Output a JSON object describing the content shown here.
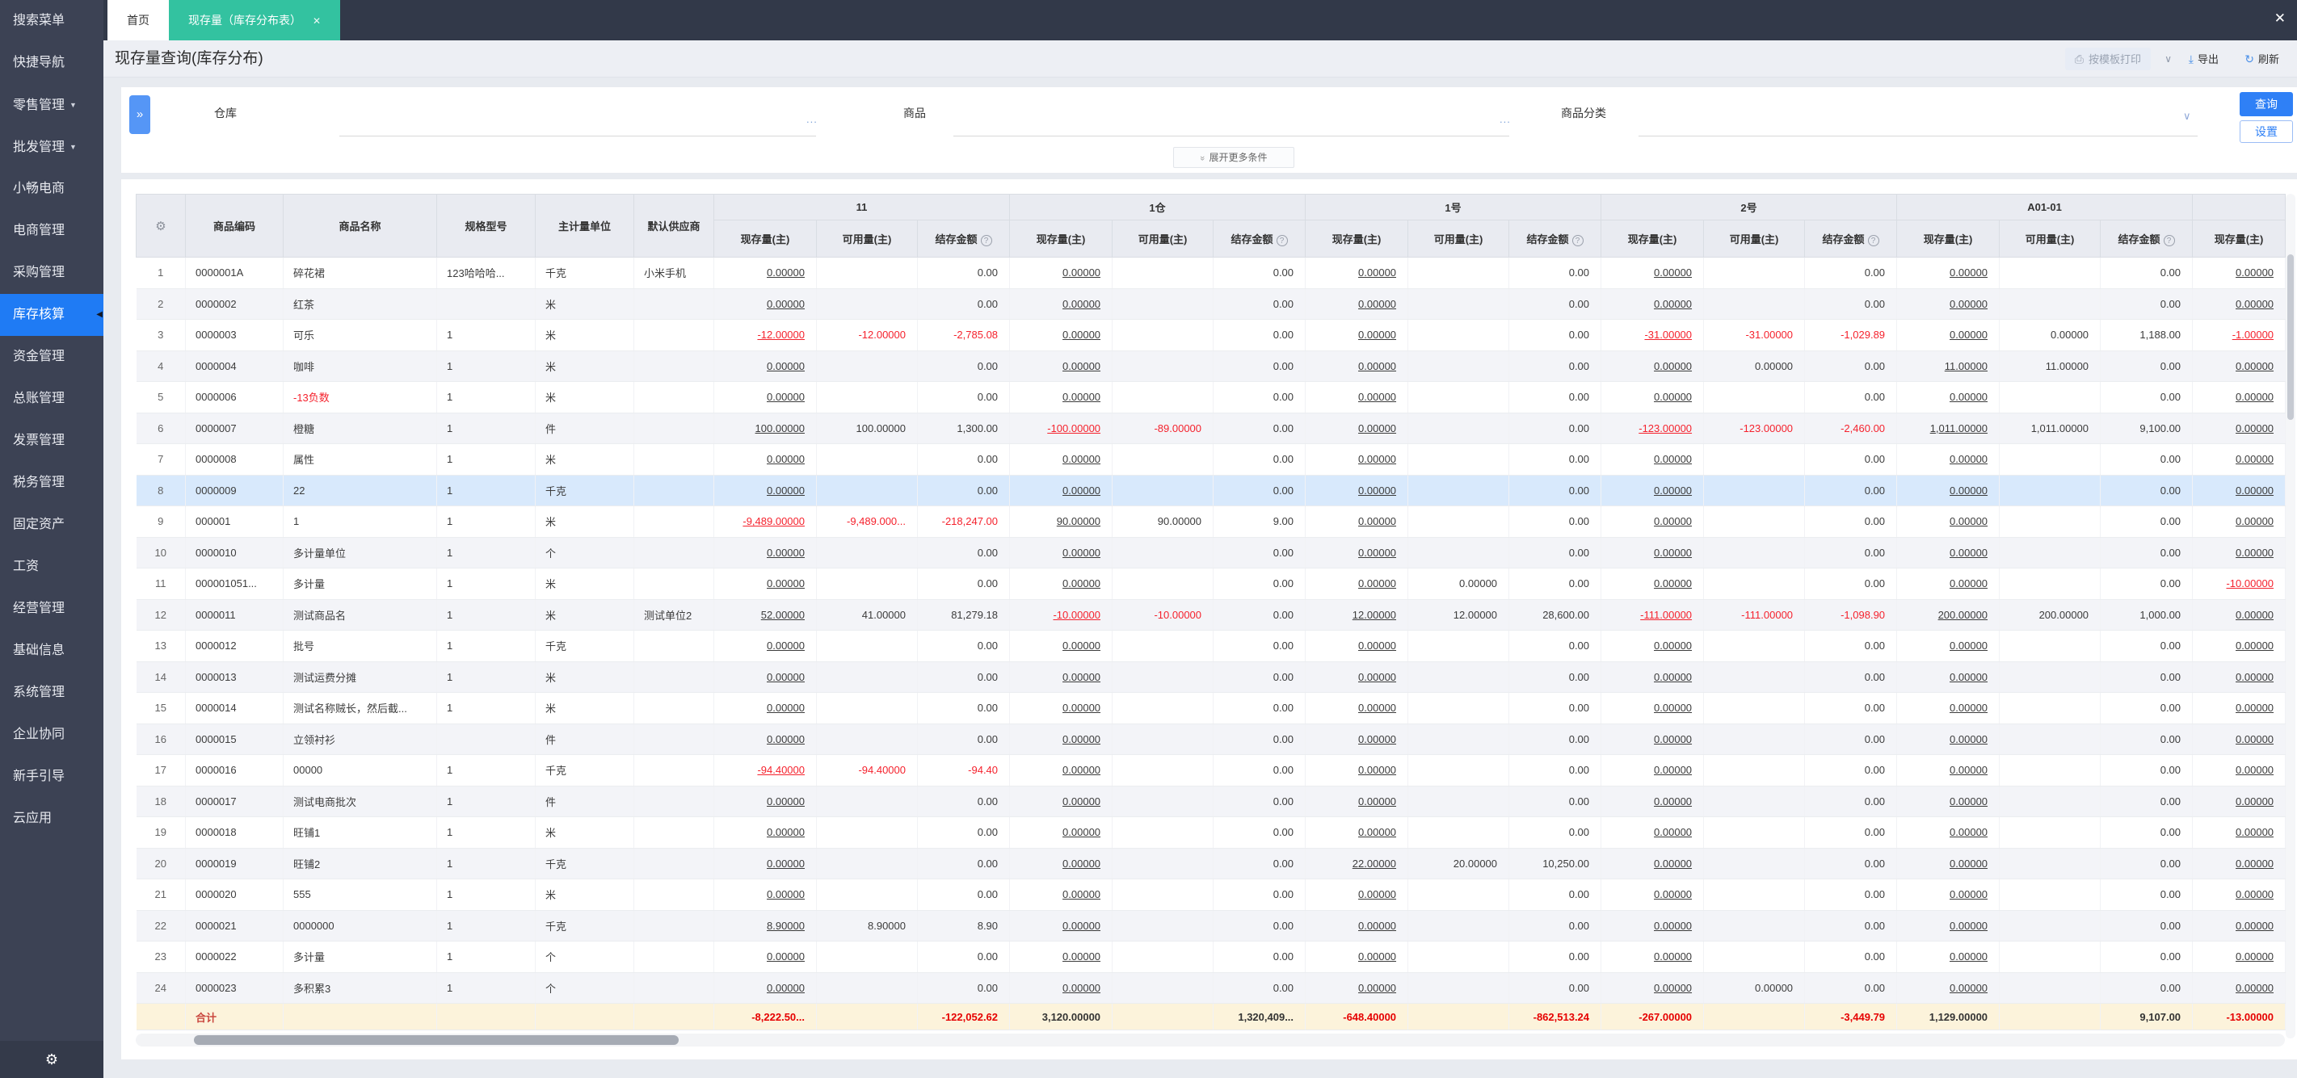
{
  "window": {
    "close": "✕"
  },
  "tabs": [
    {
      "label": "首页",
      "active": false,
      "closable": false
    },
    {
      "label": "现存量（库存分布表）",
      "active": true,
      "closable": true,
      "close_glyph": "✕"
    }
  ],
  "sidebar": {
    "active_index": 7,
    "items": [
      {
        "label": "搜索菜单",
        "arrow": false
      },
      {
        "label": "快捷导航",
        "arrow": false
      },
      {
        "label": "零售管理",
        "arrow": true
      },
      {
        "label": "批发管理",
        "arrow": true
      },
      {
        "label": "小畅电商",
        "arrow": false
      },
      {
        "label": "电商管理",
        "arrow": false
      },
      {
        "label": "采购管理",
        "arrow": false
      },
      {
        "label": "库存核算",
        "arrow": false
      },
      {
        "label": "资金管理",
        "arrow": false
      },
      {
        "label": "总账管理",
        "arrow": false
      },
      {
        "label": "发票管理",
        "arrow": false
      },
      {
        "label": "税务管理",
        "arrow": false
      },
      {
        "label": "固定资产",
        "arrow": false
      },
      {
        "label": "工资",
        "arrow": false
      },
      {
        "label": "经营管理",
        "arrow": false
      },
      {
        "label": "基础信息",
        "arrow": false
      },
      {
        "label": "系统管理",
        "arrow": false
      },
      {
        "label": "企业协同",
        "arrow": false
      },
      {
        "label": "新手引导",
        "arrow": false
      },
      {
        "label": "云应用",
        "arrow": false
      }
    ]
  },
  "page": {
    "title": "现存量查询(库存分布)"
  },
  "toolbar": {
    "print": "按模板打印",
    "print_chevron": "∨",
    "export": "导出",
    "refresh": "刷新"
  },
  "filters": {
    "fields": [
      {
        "label": "仓库",
        "trailing": "..."
      },
      {
        "label": "商品",
        "trailing": "..."
      },
      {
        "label": "商品分类",
        "trailing": "∨"
      }
    ],
    "more": "展开更多条件",
    "query": "查询",
    "settings": "设置"
  },
  "colors": {
    "accent_blue": "#2f80f6",
    "tab_green": "#33c2a0",
    "negative_red": "#f5222d",
    "selected_row": "#d8e9fc",
    "total_bg": "#fcf3db",
    "sidebar_bg": "#3c4254",
    "sidebar_active": "#1f7bf4"
  },
  "table": {
    "fixed_columns": [
      "商品编码",
      "商品名称",
      "规格型号",
      "主计量单位",
      "默认供应商"
    ],
    "warehouse_groups": [
      "11",
      "1仓",
      "1号",
      "2号",
      "A01-01"
    ],
    "sub_columns": [
      "现存量(主)",
      "可用量(主)",
      "结存金额"
    ],
    "help_glyph": "?",
    "last_column": "现存量(主)",
    "selected_row_num": 8,
    "rows": [
      {
        "num": 1,
        "code": "0000001A",
        "name": "碎花裙",
        "name_red": false,
        "spec": "123哈哈哈...",
        "unit": "千克",
        "supplier": "小米手机",
        "values": [
          "0.00000",
          "",
          "0.00",
          "0.00000",
          "",
          "0.00",
          "0.00000",
          "",
          "0.00",
          "0.00000",
          "",
          "0.00",
          "0.00000",
          "",
          "0.00",
          "0.00000"
        ]
      },
      {
        "num": 2,
        "code": "0000002",
        "name": "红茶",
        "name_red": false,
        "spec": "",
        "unit": "米",
        "supplier": "",
        "values": [
          "0.00000",
          "",
          "0.00",
          "0.00000",
          "",
          "0.00",
          "0.00000",
          "",
          "0.00",
          "0.00000",
          "",
          "0.00",
          "0.00000",
          "",
          "0.00",
          "0.00000"
        ]
      },
      {
        "num": 3,
        "code": "0000003",
        "name": "可乐",
        "name_red": false,
        "spec": "1",
        "unit": "米",
        "supplier": "",
        "values": [
          "-12.00000",
          "-12.00000",
          "-2,785.08",
          "0.00000",
          "",
          "0.00",
          "0.00000",
          "",
          "0.00",
          "-31.00000",
          "-31.00000",
          "-1,029.89",
          "0.00000",
          "0.00000",
          "1,188.00",
          "-1.00000"
        ]
      },
      {
        "num": 4,
        "code": "0000004",
        "name": "咖啡",
        "name_red": false,
        "spec": "1",
        "unit": "米",
        "supplier": "",
        "values": [
          "0.00000",
          "",
          "0.00",
          "0.00000",
          "",
          "0.00",
          "0.00000",
          "",
          "0.00",
          "0.00000",
          "0.00000",
          "0.00",
          "11.00000",
          "11.00000",
          "0.00",
          "0.00000"
        ]
      },
      {
        "num": 5,
        "code": "0000006",
        "name": "-13负数",
        "name_red": true,
        "spec": "1",
        "unit": "米",
        "supplier": "",
        "values": [
          "0.00000",
          "",
          "0.00",
          "0.00000",
          "",
          "0.00",
          "0.00000",
          "",
          "0.00",
          "0.00000",
          "",
          "0.00",
          "0.00000",
          "",
          "0.00",
          "0.00000"
        ]
      },
      {
        "num": 6,
        "code": "0000007",
        "name": "橙糖",
        "name_red": false,
        "spec": "1",
        "unit": "件",
        "supplier": "",
        "values": [
          "100.00000",
          "100.00000",
          "1,300.00",
          "-100.00000",
          "-89.00000",
          "0.00",
          "0.00000",
          "",
          "0.00",
          "-123.00000",
          "-123.00000",
          "-2,460.00",
          "1,011.00000",
          "1,011.00000",
          "9,100.00",
          "0.00000"
        ]
      },
      {
        "num": 7,
        "code": "0000008",
        "name": "属性",
        "name_red": false,
        "spec": "1",
        "unit": "米",
        "supplier": "",
        "values": [
          "0.00000",
          "",
          "0.00",
          "0.00000",
          "",
          "0.00",
          "0.00000",
          "",
          "0.00",
          "0.00000",
          "",
          "0.00",
          "0.00000",
          "",
          "0.00",
          "0.00000"
        ]
      },
      {
        "num": 8,
        "code": "0000009",
        "name": "22",
        "name_red": false,
        "spec": "1",
        "unit": "千克",
        "supplier": "",
        "values": [
          "0.00000",
          "",
          "0.00",
          "0.00000",
          "",
          "0.00",
          "0.00000",
          "",
          "0.00",
          "0.00000",
          "",
          "0.00",
          "0.00000",
          "",
          "0.00",
          "0.00000"
        ]
      },
      {
        "num": 9,
        "code": "000001",
        "name": "1",
        "name_red": false,
        "spec": "1",
        "unit": "米",
        "supplier": "",
        "values": [
          "-9,489.00000",
          "-9,489.000...",
          "-218,247.00",
          "90.00000",
          "90.00000",
          "9.00",
          "0.00000",
          "",
          "0.00",
          "0.00000",
          "",
          "0.00",
          "0.00000",
          "",
          "0.00",
          "0.00000"
        ]
      },
      {
        "num": 10,
        "code": "0000010",
        "name": "多计量单位",
        "name_red": false,
        "spec": "1",
        "unit": "个",
        "supplier": "",
        "values": [
          "0.00000",
          "",
          "0.00",
          "0.00000",
          "",
          "0.00",
          "0.00000",
          "",
          "0.00",
          "0.00000",
          "",
          "0.00",
          "0.00000",
          "",
          "0.00",
          "0.00000"
        ]
      },
      {
        "num": 11,
        "code": "000001051...",
        "name": "多计量",
        "name_red": false,
        "spec": "1",
        "unit": "米",
        "supplier": "",
        "values": [
          "0.00000",
          "",
          "0.00",
          "0.00000",
          "",
          "0.00",
          "0.00000",
          "0.00000",
          "0.00",
          "0.00000",
          "",
          "0.00",
          "0.00000",
          "",
          "0.00",
          "-10.00000"
        ]
      },
      {
        "num": 12,
        "code": "0000011",
        "name": "测试商品名",
        "name_red": false,
        "spec": "1",
        "unit": "米",
        "supplier": "测试单位2",
        "values": [
          "52.00000",
          "41.00000",
          "81,279.18",
          "-10.00000",
          "-10.00000",
          "0.00",
          "12.00000",
          "12.00000",
          "28,600.00",
          "-111.00000",
          "-111.00000",
          "-1,098.90",
          "200.00000",
          "200.00000",
          "1,000.00",
          "0.00000"
        ]
      },
      {
        "num": 13,
        "code": "0000012",
        "name": "批号",
        "name_red": false,
        "spec": "1",
        "unit": "千克",
        "supplier": "",
        "values": [
          "0.00000",
          "",
          "0.00",
          "0.00000",
          "",
          "0.00",
          "0.00000",
          "",
          "0.00",
          "0.00000",
          "",
          "0.00",
          "0.00000",
          "",
          "0.00",
          "0.00000"
        ]
      },
      {
        "num": 14,
        "code": "0000013",
        "name": "测试运费分摊",
        "name_red": false,
        "spec": "1",
        "unit": "米",
        "supplier": "",
        "values": [
          "0.00000",
          "",
          "0.00",
          "0.00000",
          "",
          "0.00",
          "0.00000",
          "",
          "0.00",
          "0.00000",
          "",
          "0.00",
          "0.00000",
          "",
          "0.00",
          "0.00000"
        ]
      },
      {
        "num": 15,
        "code": "0000014",
        "name": "测试名称贼长，然后截...",
        "name_red": false,
        "spec": "1",
        "unit": "米",
        "supplier": "",
        "values": [
          "0.00000",
          "",
          "0.00",
          "0.00000",
          "",
          "0.00",
          "0.00000",
          "",
          "0.00",
          "0.00000",
          "",
          "0.00",
          "0.00000",
          "",
          "0.00",
          "0.00000"
        ]
      },
      {
        "num": 16,
        "code": "0000015",
        "name": "立领衬衫",
        "name_red": false,
        "spec": "",
        "unit": "件",
        "supplier": "",
        "values": [
          "0.00000",
          "",
          "0.00",
          "0.00000",
          "",
          "0.00",
          "0.00000",
          "",
          "0.00",
          "0.00000",
          "",
          "0.00",
          "0.00000",
          "",
          "0.00",
          "0.00000"
        ]
      },
      {
        "num": 17,
        "code": "0000016",
        "name": "00000",
        "name_red": false,
        "spec": "1",
        "unit": "千克",
        "supplier": "",
        "values": [
          "-94.40000",
          "-94.40000",
          "-94.40",
          "0.00000",
          "",
          "0.00",
          "0.00000",
          "",
          "0.00",
          "0.00000",
          "",
          "0.00",
          "0.00000",
          "",
          "0.00",
          "0.00000"
        ]
      },
      {
        "num": 18,
        "code": "0000017",
        "name": "测试电商批次",
        "name_red": false,
        "spec": "1",
        "unit": "件",
        "supplier": "",
        "values": [
          "0.00000",
          "",
          "0.00",
          "0.00000",
          "",
          "0.00",
          "0.00000",
          "",
          "0.00",
          "0.00000",
          "",
          "0.00",
          "0.00000",
          "",
          "0.00",
          "0.00000"
        ]
      },
      {
        "num": 19,
        "code": "0000018",
        "name": "旺铺1",
        "name_red": false,
        "spec": "1",
        "unit": "米",
        "supplier": "",
        "values": [
          "0.00000",
          "",
          "0.00",
          "0.00000",
          "",
          "0.00",
          "0.00000",
          "",
          "0.00",
          "0.00000",
          "",
          "0.00",
          "0.00000",
          "",
          "0.00",
          "0.00000"
        ]
      },
      {
        "num": 20,
        "code": "0000019",
        "name": "旺铺2",
        "name_red": false,
        "spec": "1",
        "unit": "千克",
        "supplier": "",
        "values": [
          "0.00000",
          "",
          "0.00",
          "0.00000",
          "",
          "0.00",
          "22.00000",
          "20.00000",
          "10,250.00",
          "0.00000",
          "",
          "0.00",
          "0.00000",
          "",
          "0.00",
          "0.00000"
        ]
      },
      {
        "num": 21,
        "code": "0000020",
        "name": "555",
        "name_red": false,
        "spec": "1",
        "unit": "米",
        "supplier": "",
        "values": [
          "0.00000",
          "",
          "0.00",
          "0.00000",
          "",
          "0.00",
          "0.00000",
          "",
          "0.00",
          "0.00000",
          "",
          "0.00",
          "0.00000",
          "",
          "0.00",
          "0.00000"
        ]
      },
      {
        "num": 22,
        "code": "0000021",
        "name": "0000000",
        "name_red": false,
        "spec": "1",
        "unit": "千克",
        "supplier": "",
        "values": [
          "8.90000",
          "8.90000",
          "8.90",
          "0.00000",
          "",
          "0.00",
          "0.00000",
          "",
          "0.00",
          "0.00000",
          "",
          "0.00",
          "0.00000",
          "",
          "0.00",
          "0.00000"
        ]
      },
      {
        "num": 23,
        "code": "0000022",
        "name": "多计量",
        "name_red": false,
        "spec": "1",
        "unit": "个",
        "supplier": "",
        "values": [
          "0.00000",
          "",
          "0.00",
          "0.00000",
          "",
          "0.00",
          "0.00000",
          "",
          "0.00",
          "0.00000",
          "",
          "0.00",
          "0.00000",
          "",
          "0.00",
          "0.00000"
        ]
      },
      {
        "num": 24,
        "code": "0000023",
        "name": "多积累3",
        "name_red": false,
        "spec": "1",
        "unit": "个",
        "supplier": "",
        "values": [
          "0.00000",
          "",
          "0.00",
          "0.00000",
          "",
          "0.00",
          "0.00000",
          "",
          "0.00",
          "0.00000",
          "0.00000",
          "0.00",
          "0.00000",
          "",
          "0.00",
          "0.00000"
        ]
      }
    ],
    "total": {
      "label": "合计",
      "values": [
        "-8,222.50...",
        "",
        "-122,052.62",
        "3,120.00000",
        "",
        "1,320,409...",
        "-648.40000",
        "",
        "-862,513.24",
        "-267.00000",
        "",
        "-3,449.79",
        "1,129.00000",
        "",
        "9,107.00",
        "-13.00000"
      ]
    }
  }
}
